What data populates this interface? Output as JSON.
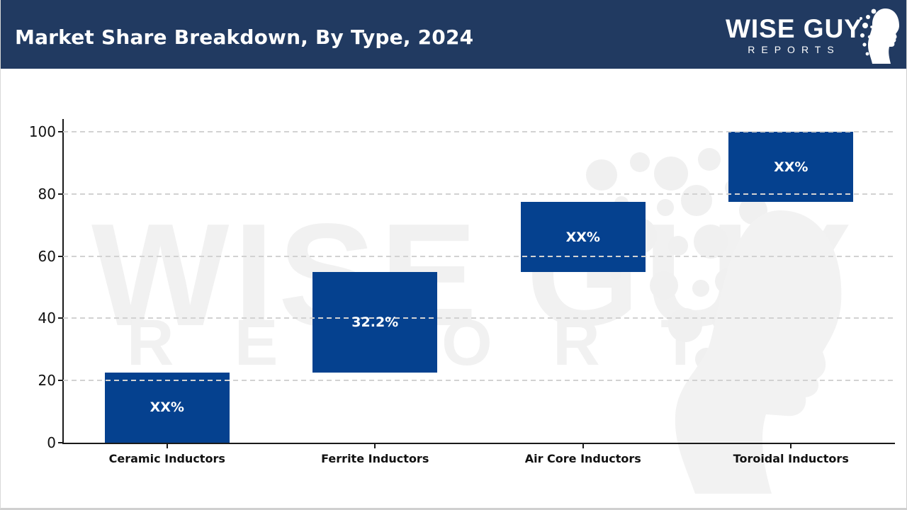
{
  "header": {
    "title": "Market Share Breakdown, By Type, 2024",
    "logo_line1": "WISE GUY",
    "logo_line2": "REPORTS"
  },
  "watermark": {
    "line1": "WISE GUY",
    "line2": "R E P O R T S"
  },
  "colors": {
    "header_bg": "#213A61",
    "bar": "#05418F",
    "axis": "#1a1a1a",
    "grid": "#d2d2d2",
    "bar_label": "#ffffff",
    "watermark": "#f1f1f1"
  },
  "chart_data": {
    "type": "bar",
    "subtype": "floating-waterfall",
    "title": "Market Share Breakdown, By Type, 2024",
    "categories": [
      "Ceramic Inductors",
      "Ferrite Inductors",
      "Air Core Inductors",
      "Toroidal Inductors"
    ],
    "segments": [
      {
        "category": "Ceramic Inductors",
        "start": 0,
        "end": 22.6,
        "label": "XX%"
      },
      {
        "category": "Ferrite Inductors",
        "start": 22.6,
        "end": 54.8,
        "label": "32.2%"
      },
      {
        "category": "Air Core Inductors",
        "start": 54.8,
        "end": 77.4,
        "label": "XX%"
      },
      {
        "category": "Toroidal Inductors",
        "start": 77.4,
        "end": 100,
        "label": "XX%"
      }
    ],
    "yticks": [
      0,
      20,
      40,
      60,
      80,
      100
    ],
    "ylim": [
      0,
      104
    ],
    "xlabel": "",
    "ylabel": "",
    "grid": "horizontal-dashed",
    "legend": "none"
  }
}
